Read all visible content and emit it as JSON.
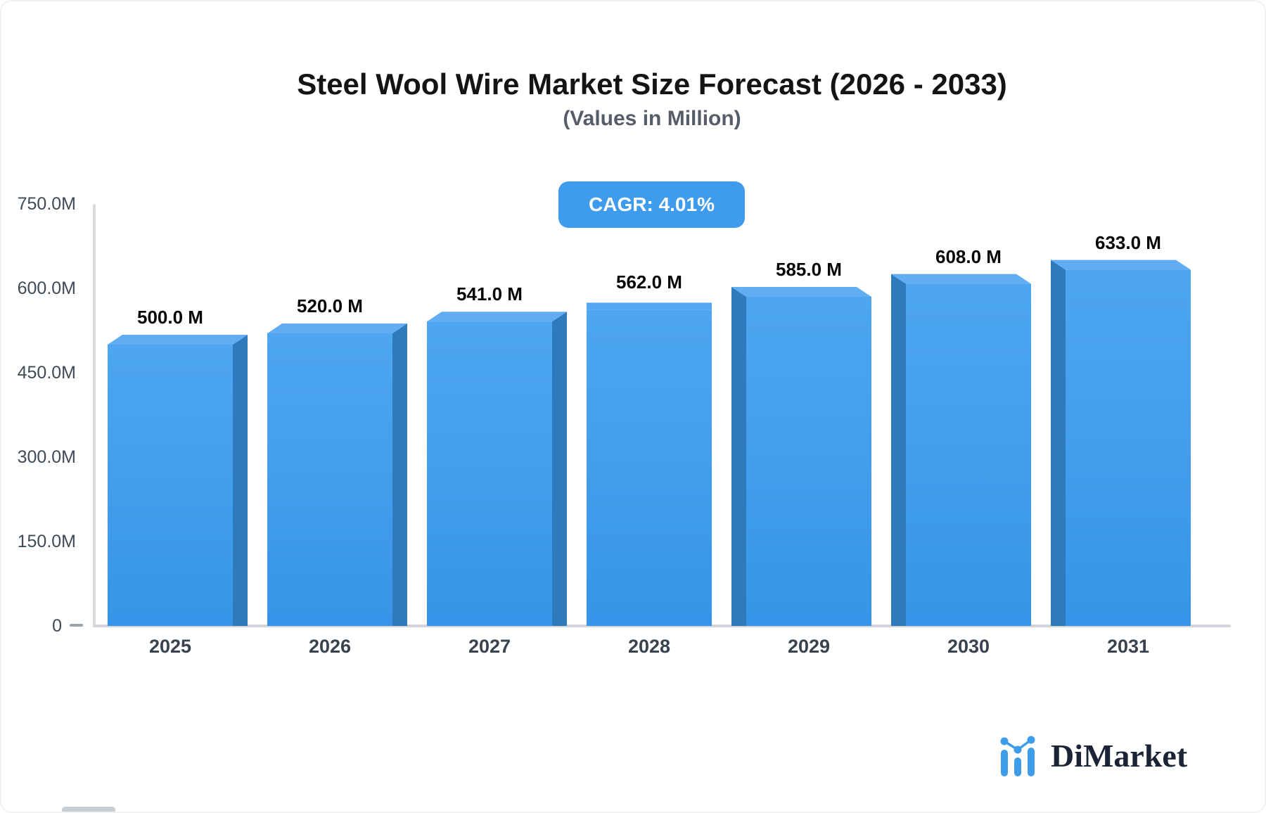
{
  "header": {
    "title": "Steel Wool Wire Market Size Forecast (2026 - 2033)",
    "subtitle": "(Values in Million)",
    "cagr_badge": "CAGR: 4.01%"
  },
  "logo": {
    "text": "DiMarket",
    "icon": "bar-chart-with-trendline-icon"
  },
  "chart_data": {
    "type": "bar",
    "title": "Steel Wool Wire Market Size Forecast (2026 - 2033)",
    "subtitle": "(Values in Million)",
    "unit": "Million",
    "cagr": "4.01%",
    "categories": [
      "2025",
      "2026",
      "2027",
      "2028",
      "2029",
      "2030",
      "2031"
    ],
    "values": [
      500,
      520,
      541,
      562,
      585,
      608,
      633
    ],
    "bar_labels": [
      "500.0 M",
      "520.0 M",
      "541.0 M",
      "562.0 M",
      "585.0 M",
      "608.0 M",
      "633.0 M"
    ],
    "y_ticks": [
      {
        "label": "750.0M",
        "value": 750
      },
      {
        "label": "600.0M",
        "value": 600
      },
      {
        "label": "450.0M",
        "value": 450
      },
      {
        "label": "300.0M",
        "value": 300
      },
      {
        "label": "150.0M",
        "value": 150
      },
      {
        "label": "0",
        "value": 0
      }
    ],
    "ylim": [
      0,
      750
    ],
    "grid": false,
    "legend": "none",
    "bar_style": "3d-perspective-from-center",
    "colors": {
      "bar_front_top": "#4ea6f0",
      "bar_front_bottom": "#3794e8",
      "bar_top_face": "#61acf3",
      "bar_top_face_center": "#55a7f1",
      "bar_side_face": "#2e7abc",
      "badge_bg": "#3f9cec",
      "logo_blue": "#3f9ceb",
      "title_text": "#141414",
      "subtitle_text": "#565d68",
      "axis_text": "#3f4b59"
    }
  }
}
